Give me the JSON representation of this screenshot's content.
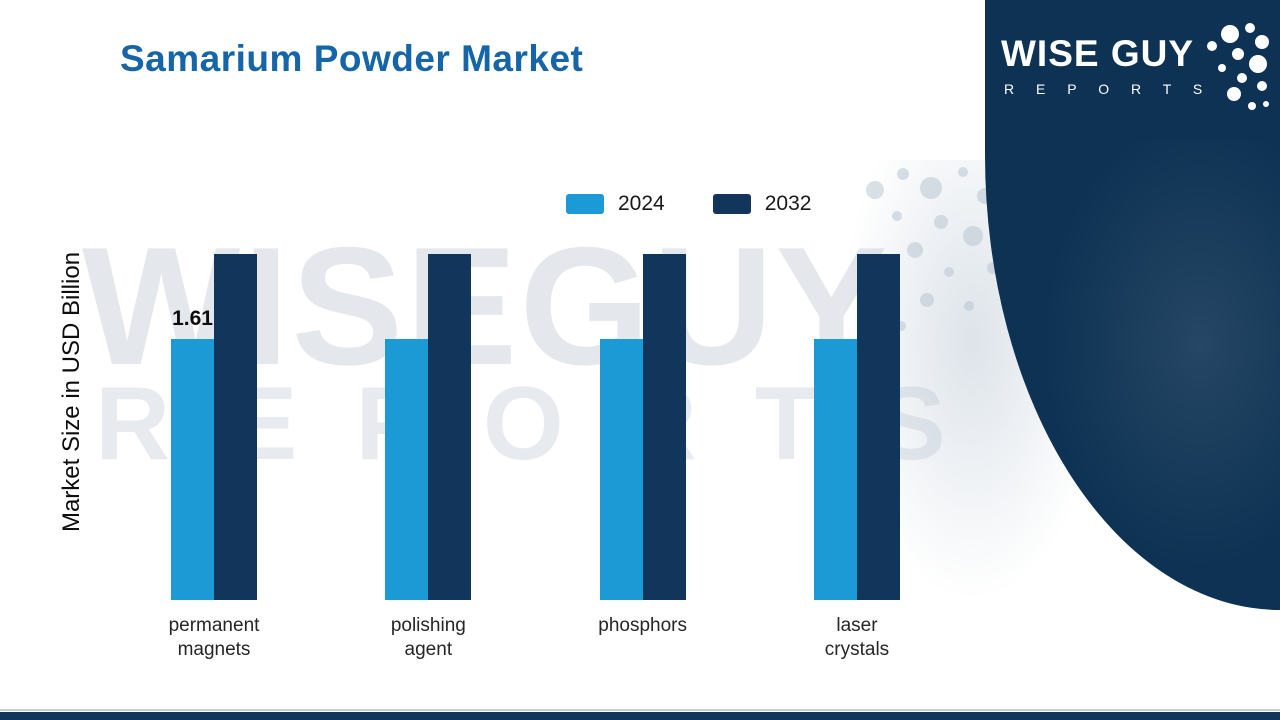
{
  "chart_data": {
    "type": "bar",
    "title": "Samarium Powder Market",
    "ylabel": "Market Size in USD Billion",
    "categories": [
      "permanent\nmagnets",
      "polishing\nagent",
      "phosphors",
      "laser\ncrystals"
    ],
    "series": [
      {
        "name": "2024",
        "color": "#1b9ad6",
        "values": [
          1.61,
          1.61,
          1.61,
          1.61
        ]
      },
      {
        "name": "2032",
        "color": "#12355c",
        "values": [
          2.13,
          2.13,
          2.13,
          2.13
        ]
      }
    ],
    "ylim": [
      0,
      2.2
    ],
    "grid": false,
    "axis_ticks_visible": false,
    "legend_position": "top-center",
    "annotations": [
      {
        "text": "1.61",
        "series_index": 0,
        "category_index": 0
      }
    ]
  },
  "brand": {
    "line1": "WISE GUY",
    "line2": "R E P O R T S"
  },
  "watermark": {
    "line1": "WISEGUY",
    "line2": "REPORTS"
  },
  "colors": {
    "title": "#1565a8",
    "series_2024": "#1b9ad6",
    "series_2032": "#12355c",
    "brand_bg": "#0d3253",
    "footer_bar": "#12355c",
    "watermark_gray": "#e4e8ed"
  }
}
